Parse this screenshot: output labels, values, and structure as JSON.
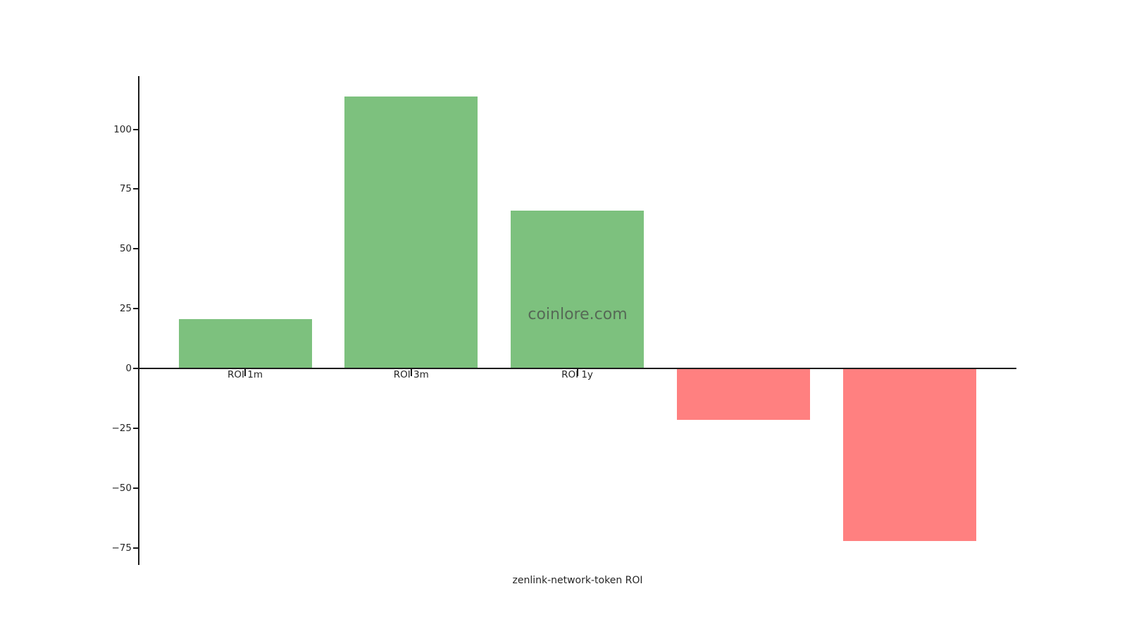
{
  "chart_data": {
    "type": "bar",
    "categories": [
      "ROI 1m",
      "ROI 3m",
      "ROI 1y",
      "",
      ""
    ],
    "values": [
      20.6,
      113.6,
      66.1,
      -21.5,
      -72.3
    ],
    "title": "",
    "xlabel": "zenlink-network-token ROI",
    "ylabel": "",
    "ylim": [
      -82,
      122
    ],
    "yticks": [
      100,
      75,
      50,
      25,
      0,
      -25,
      -50,
      -75
    ],
    "ytick_labels": [
      "100",
      "75",
      "50",
      "25",
      "0",
      "−25",
      "−50",
      "−75"
    ],
    "grid": false,
    "legend": false,
    "positive_color": "#7dc17e",
    "negative_color": "#ff8080",
    "axis_color": "#1c1c1c",
    "text_color": "#262626"
  },
  "watermark": {
    "text": "coinlore.com"
  }
}
